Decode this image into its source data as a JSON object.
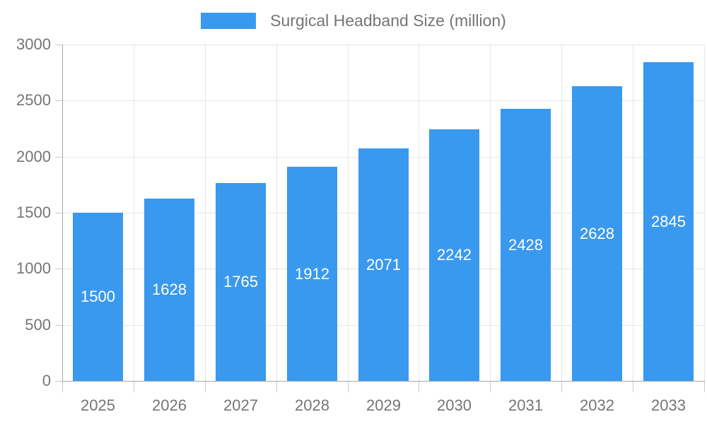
{
  "chart_data": {
    "type": "bar",
    "title": "Surgical Headband Size (million)",
    "categories": [
      "2025",
      "2026",
      "2027",
      "2028",
      "2029",
      "2030",
      "2031",
      "2032",
      "2033"
    ],
    "series": [
      {
        "name": "Surgical Headband Size (million)",
        "values": [
          1500,
          1628,
          1765,
          1912,
          2071,
          2242,
          2428,
          2628,
          2845
        ]
      }
    ],
    "xlabel": "",
    "ylabel": "",
    "ylim": [
      0,
      3000
    ],
    "yticks": [
      0,
      500,
      1000,
      1500,
      2000,
      2500,
      3000
    ],
    "grid": true,
    "legend_position": "top-center",
    "value_labels": "inside-center"
  },
  "colors": {
    "bar": "#3999ef",
    "grid": "#e6e6e6",
    "axis": "#a8a8a8",
    "tick": "#cccccc",
    "axis_label": "#757575",
    "value_label": "#ffffff",
    "background": "#ffffff"
  }
}
